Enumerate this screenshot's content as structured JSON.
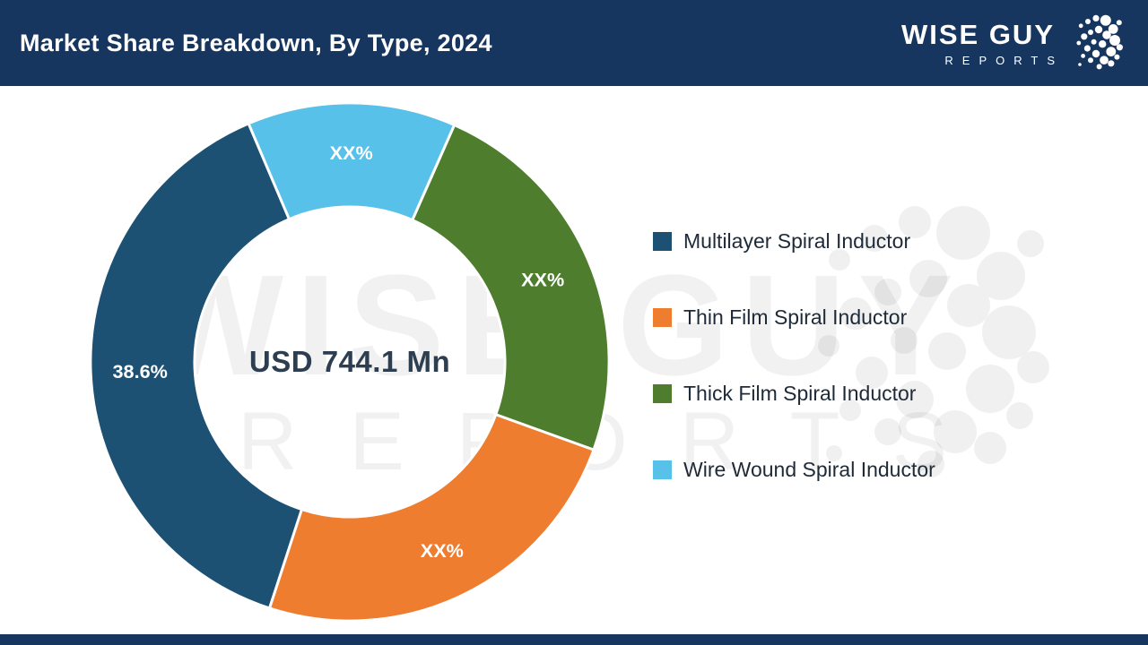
{
  "header": {
    "title": "Market Share Breakdown, By Type, 2024",
    "logo": {
      "line1": "WISE GUY",
      "line2": "REPORTS"
    }
  },
  "watermark": {
    "line1": "WISE GUY",
    "line2": "REPORTS"
  },
  "chart_data": {
    "type": "donut",
    "title": "Market Share Breakdown, By Type, 2024",
    "center_label": "USD 744.1 Mn",
    "start_angle_deg": -23,
    "legend_position": "right",
    "segments": [
      {
        "label": "Wire Wound Spiral Inductor",
        "value": 13.0,
        "display": "XX%",
        "color": "#58c1e9"
      },
      {
        "label": "Thick Film Spiral Inductor",
        "value": 23.9,
        "display": "XX%",
        "color": "#4e7d2d"
      },
      {
        "label": "Thin Film Spiral Inductor",
        "value": 24.5,
        "display": "XX%",
        "color": "#ee7d30"
      },
      {
        "label": "Multilayer Spiral Inductor",
        "value": 38.6,
        "display": "38.6%",
        "color": "#1d5174"
      }
    ]
  },
  "legend": {
    "items": [
      {
        "label": "Multilayer Spiral Inductor",
        "color": "#1d5174"
      },
      {
        "label": "Thin Film Spiral Inductor",
        "color": "#ee7d30"
      },
      {
        "label": "Thick Film Spiral Inductor",
        "color": "#4e7d2d"
      },
      {
        "label": "Wire Wound Spiral Inductor",
        "color": "#58c1e9"
      }
    ]
  },
  "colors": {
    "header_bg": "#16365f",
    "footer_bg": "#16365f",
    "center_text": "#2d3e50"
  }
}
